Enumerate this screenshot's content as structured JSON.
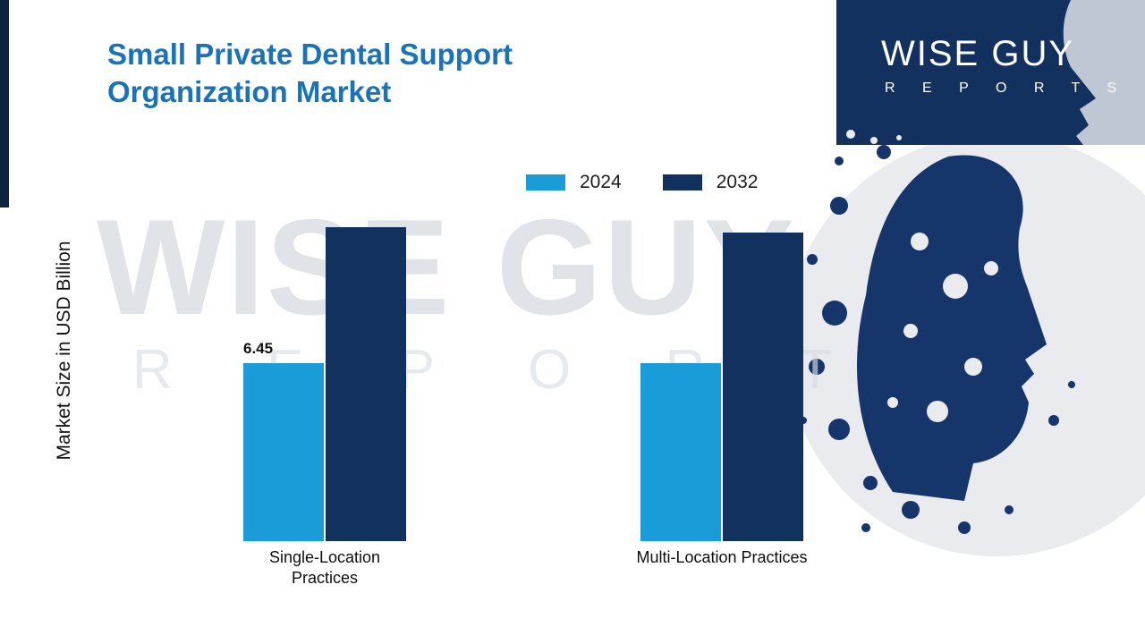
{
  "header": {
    "title": "Small Private Dental Support Organization Market"
  },
  "logo": {
    "brand_line1": "WISE GUY",
    "brand_line2": "R E P O R T S"
  },
  "watermark": {
    "line1": "WISE GUY",
    "line2": "R E P O R T"
  },
  "chart_data": {
    "type": "bar",
    "title": "Small Private Dental Support Organization Market",
    "xlabel": "",
    "ylabel": "Market Size in USD Billion",
    "categories": [
      "Single-Location Practices",
      "Multi-Location Practices"
    ],
    "series": [
      {
        "name": "2024",
        "color": "#1a9cd8",
        "values": [
          6.45,
          6.45
        ],
        "labels": [
          "6.45",
          ""
        ]
      },
      {
        "name": "2032",
        "color": "#12315e",
        "values": [
          11.4,
          11.2
        ],
        "labels": [
          "",
          ""
        ]
      }
    ],
    "ylim": [
      0,
      12
    ],
    "grid": false,
    "legend_position": "top"
  },
  "colors": {
    "title_blue": "#1873b8",
    "bar_2024": "#1a9cd8",
    "bar_2032": "#12315e",
    "header_navy": "#12315e",
    "circle_gray": "#e9ebee"
  }
}
